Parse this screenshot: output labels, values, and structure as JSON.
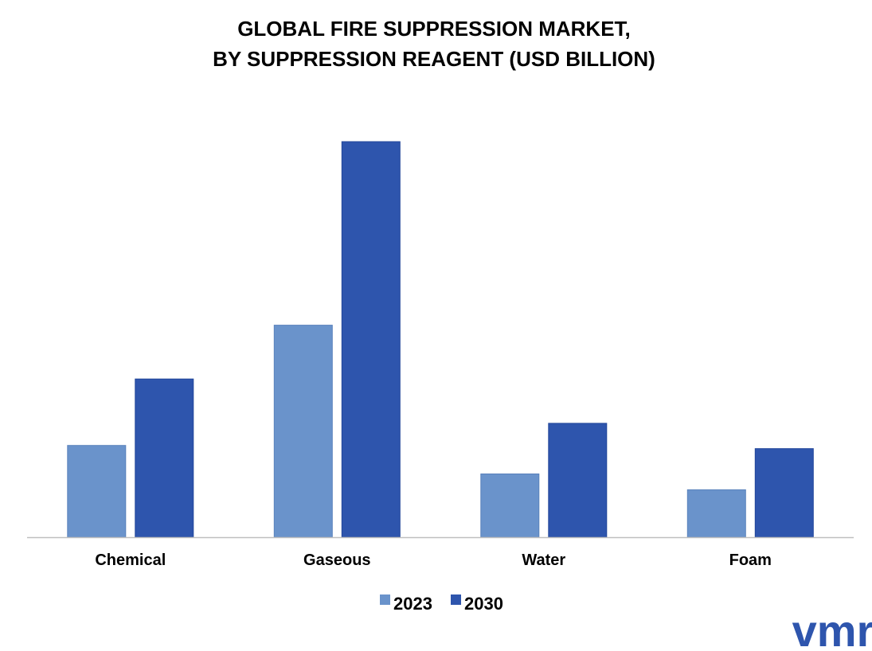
{
  "chart_data": {
    "type": "bar",
    "title": "GLOBAL FIRE SUPPRESSION MARKET,",
    "subtitle": "BY SUPPRESSION REAGENT (USD BILLION)",
    "categories": [
      "Chemical",
      "Gaseous",
      "Water",
      "Foam"
    ],
    "series": [
      {
        "name": "2023",
        "values": [
          2.9,
          6.7,
          2.0,
          1.5
        ],
        "color": "#6A93CB"
      },
      {
        "name": "2030",
        "values": [
          5.0,
          12.5,
          3.6,
          2.8
        ],
        "color": "#2E55AD"
      }
    ],
    "ylim": [
      0,
      12.5
    ],
    "grid": false,
    "legend_position": "bottom-center"
  },
  "logo": {
    "text": "vmr",
    "color": "#2E55AD"
  },
  "colors": {
    "axis": "#BFBFBF",
    "text": "#000000"
  }
}
